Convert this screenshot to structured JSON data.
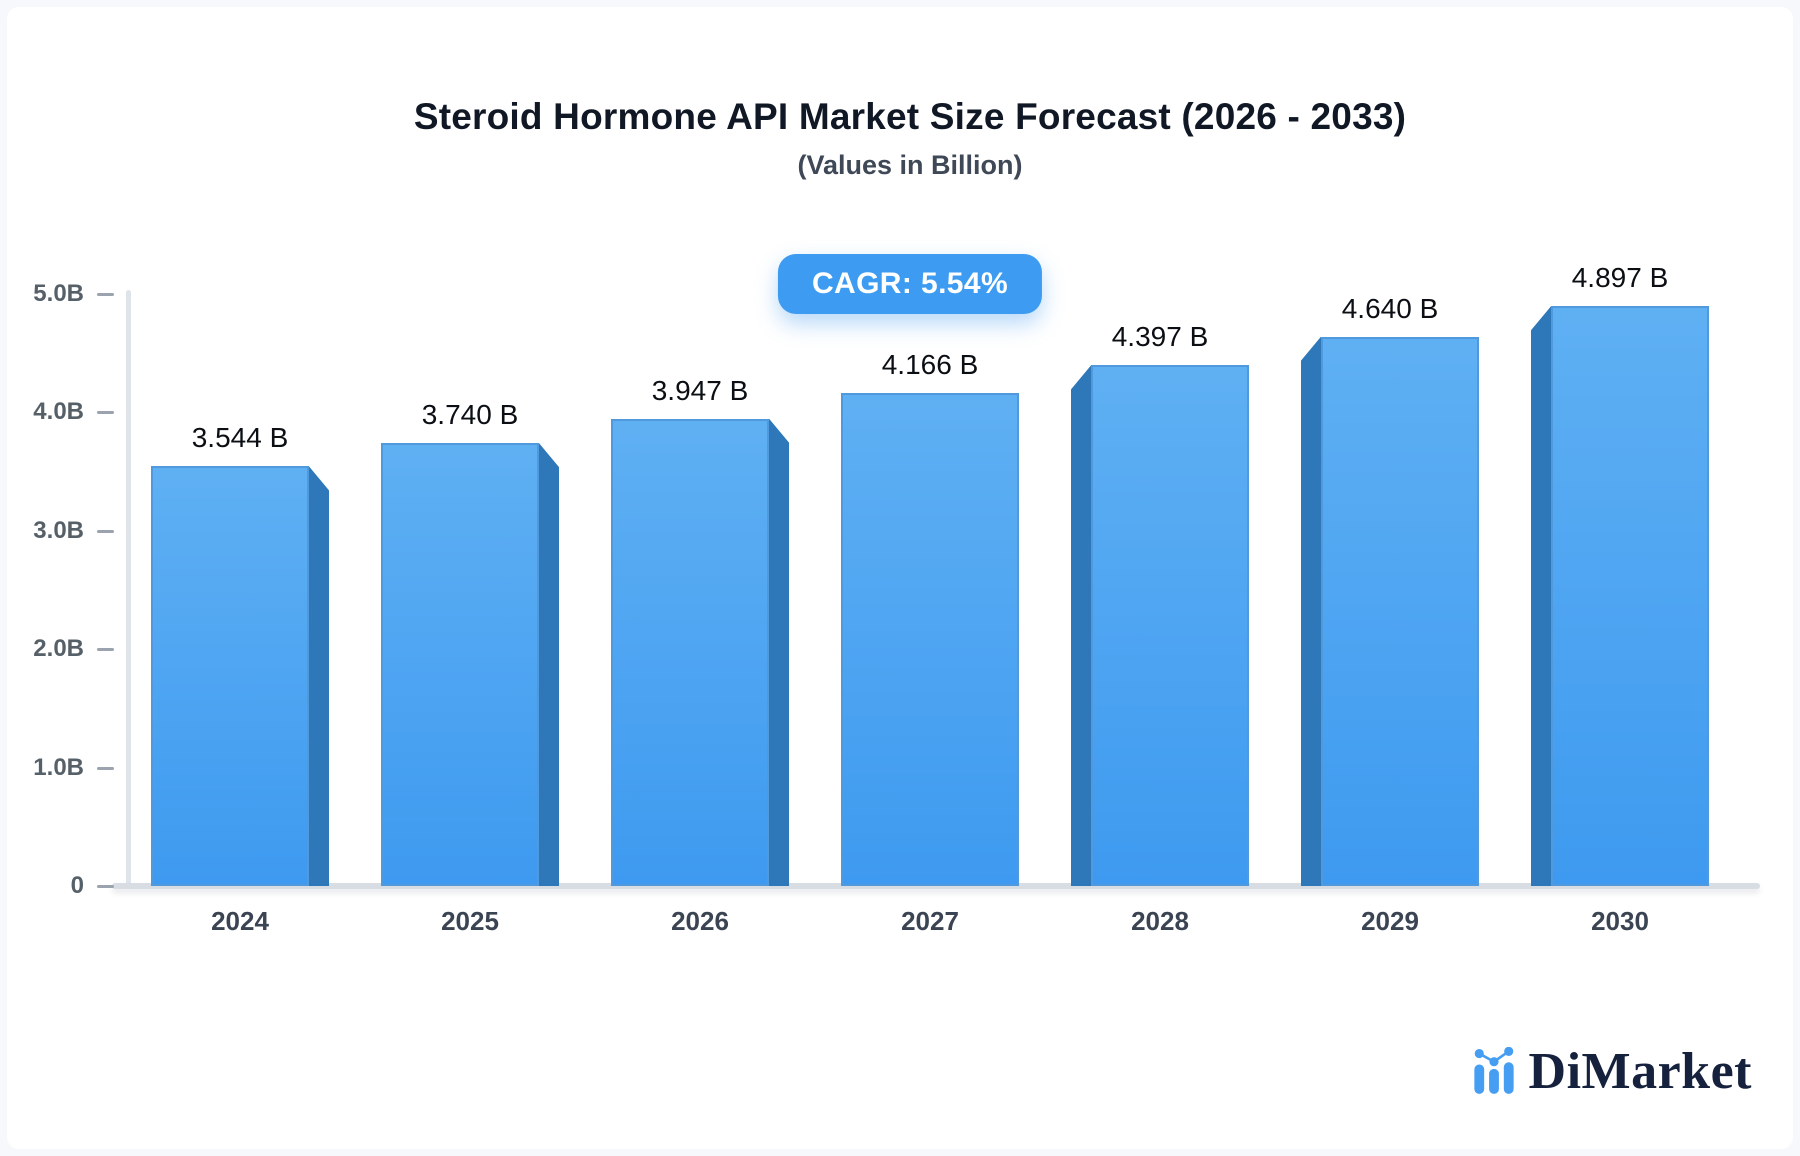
{
  "chart_data": {
    "type": "bar",
    "title": "Steroid Hormone API Market Size Forecast (2026 - 2033)",
    "subtitle": "(Values in Billion)",
    "annotation": "CAGR: 5.54%",
    "categories": [
      "2024",
      "2025",
      "2026",
      "2027",
      "2028",
      "2029",
      "2030"
    ],
    "values": [
      3.544,
      3.74,
      3.947,
      4.166,
      4.397,
      4.64,
      4.897
    ],
    "value_labels": [
      "3.544 B",
      "3.740 B",
      "3.947 B",
      "4.166 B",
      "4.397 B",
      "4.640 B",
      "4.897 B"
    ],
    "ylim": [
      0,
      5
    ],
    "y_ticks": {
      "labels": [
        "5.0B",
        "4.0B",
        "3.0B",
        "2.0B",
        "1.0B",
        "0"
      ],
      "values": [
        5,
        4,
        3,
        2,
        1,
        0
      ]
    },
    "grid": false,
    "legend": false,
    "xlabel": "",
    "ylabel": ""
  },
  "logo": {
    "brand": "DiMarket"
  },
  "colors": {
    "bar_top": "#5fb0f3",
    "bar_bottom": "#3e9af0",
    "bar_side": "#2e77b9",
    "bar_border": "#4f99dc",
    "badge_bg": "#3d9cf1",
    "logo_blue": "#459ef2",
    "logo_navy": "#16223d"
  }
}
